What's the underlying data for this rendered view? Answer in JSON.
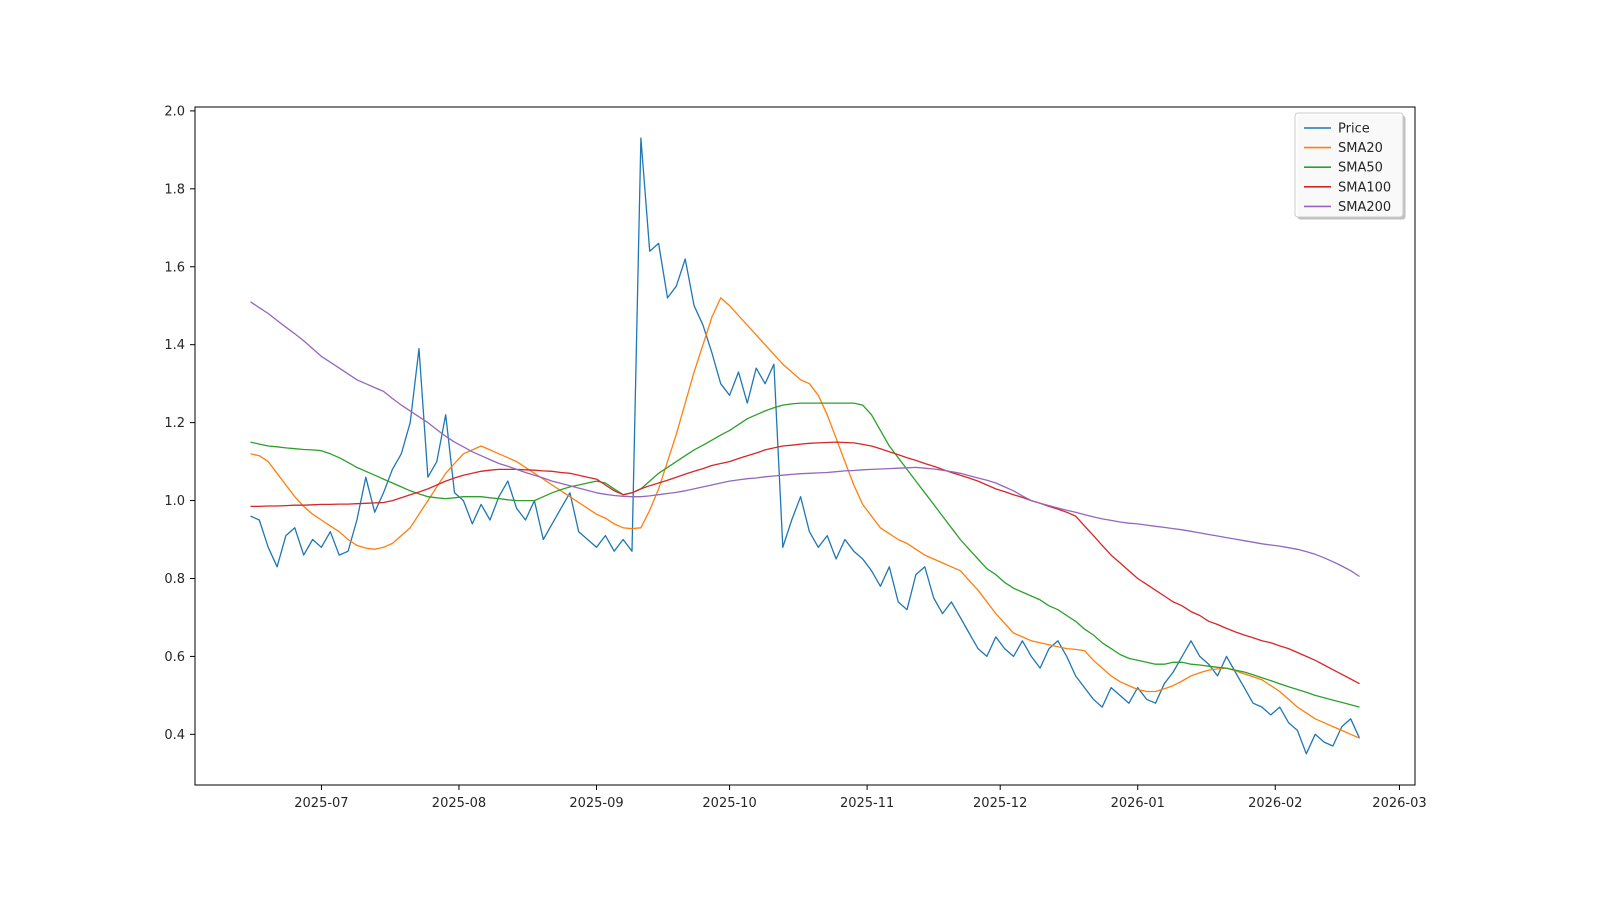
{
  "figure": {
    "background": "#ffffff",
    "axes_edge_color": "#000000",
    "tick_color": "#262626"
  },
  "chart_data": {
    "type": "line",
    "title": "",
    "xlabel": "",
    "ylabel": "",
    "grid": false,
    "legend_position": "upper right",
    "x_start_date": "2025-06-15",
    "x_step_days": 2,
    "xlim_days": [
      -12.5,
      262.5
    ],
    "ylim": [
      0.27,
      2.01
    ],
    "yticks": [
      0.4,
      0.6,
      0.8,
      1.0,
      1.2,
      1.4,
      1.6,
      1.8,
      2.0
    ],
    "xticks": [
      {
        "label": "2025-07",
        "day": 16
      },
      {
        "label": "2025-08",
        "day": 47
      },
      {
        "label": "2025-09",
        "day": 78
      },
      {
        "label": "2025-10",
        "day": 108
      },
      {
        "label": "2025-11",
        "day": 139
      },
      {
        "label": "2025-12",
        "day": 169
      },
      {
        "label": "2026-01",
        "day": 200
      },
      {
        "label": "2026-02",
        "day": 231
      },
      {
        "label": "2026-03",
        "day": 259
      }
    ],
    "series": [
      {
        "name": "Price",
        "color": "#1f77b4",
        "values": [
          0.96,
          0.95,
          0.88,
          0.83,
          0.91,
          0.93,
          0.86,
          0.9,
          0.88,
          0.92,
          0.86,
          0.87,
          0.95,
          1.06,
          0.97,
          1.02,
          1.08,
          1.12,
          1.2,
          1.39,
          1.06,
          1.1,
          1.22,
          1.02,
          1.0,
          0.94,
          0.99,
          0.95,
          1.01,
          1.05,
          0.98,
          0.95,
          1.0,
          0.9,
          0.94,
          0.98,
          1.02,
          0.92,
          0.9,
          0.88,
          0.91,
          0.87,
          0.9,
          0.87,
          1.93,
          1.64,
          1.66,
          1.52,
          1.55,
          1.62,
          1.5,
          1.45,
          1.38,
          1.3,
          1.27,
          1.33,
          1.25,
          1.34,
          1.3,
          1.35,
          0.88,
          0.95,
          1.01,
          0.92,
          0.88,
          0.91,
          0.85,
          0.9,
          0.87,
          0.85,
          0.82,
          0.78,
          0.83,
          0.74,
          0.72,
          0.81,
          0.83,
          0.75,
          0.71,
          0.74,
          0.7,
          0.66,
          0.62,
          0.6,
          0.65,
          0.62,
          0.6,
          0.64,
          0.6,
          0.57,
          0.62,
          0.64,
          0.6,
          0.55,
          0.52,
          0.49,
          0.47,
          0.52,
          0.5,
          0.48,
          0.52,
          0.49,
          0.48,
          0.53,
          0.56,
          0.6,
          0.64,
          0.6,
          0.58,
          0.55,
          0.6,
          0.56,
          0.52,
          0.48,
          0.47,
          0.45,
          0.47,
          0.43,
          0.41,
          0.35,
          0.4,
          0.38,
          0.37,
          0.42,
          0.44,
          0.39
        ]
      },
      {
        "name": "SMA20",
        "color": "#ff7f0e",
        "values": [
          1.12,
          1.115,
          1.1,
          1.07,
          1.04,
          1.01,
          0.985,
          0.965,
          0.95,
          0.935,
          0.92,
          0.9,
          0.885,
          0.878,
          0.875,
          0.88,
          0.89,
          0.91,
          0.93,
          0.965,
          1.0,
          1.035,
          1.07,
          1.095,
          1.12,
          1.13,
          1.14,
          1.13,
          1.12,
          1.11,
          1.1,
          1.085,
          1.07,
          1.055,
          1.04,
          1.025,
          1.01,
          0.995,
          0.98,
          0.965,
          0.955,
          0.94,
          0.93,
          0.928,
          0.93,
          0.975,
          1.03,
          1.1,
          1.17,
          1.25,
          1.33,
          1.4,
          1.47,
          1.52,
          1.5,
          1.475,
          1.45,
          1.425,
          1.4,
          1.375,
          1.35,
          1.33,
          1.31,
          1.3,
          1.27,
          1.22,
          1.16,
          1.1,
          1.04,
          0.99,
          0.96,
          0.93,
          0.915,
          0.9,
          0.89,
          0.875,
          0.86,
          0.85,
          0.84,
          0.83,
          0.82,
          0.795,
          0.77,
          0.74,
          0.71,
          0.685,
          0.66,
          0.65,
          0.64,
          0.635,
          0.63,
          0.625,
          0.62,
          0.618,
          0.615,
          0.59,
          0.57,
          0.55,
          0.535,
          0.525,
          0.515,
          0.51,
          0.51,
          0.517,
          0.525,
          0.537,
          0.55,
          0.558,
          0.565,
          0.568,
          0.57,
          0.563,
          0.555,
          0.548,
          0.54,
          0.525,
          0.51,
          0.49,
          0.47,
          0.455,
          0.44,
          0.43,
          0.42,
          0.41,
          0.4,
          0.39
        ]
      },
      {
        "name": "SMA50",
        "color": "#2ca02c",
        "values": [
          1.15,
          1.145,
          1.14,
          1.138,
          1.135,
          1.133,
          1.131,
          1.13,
          1.128,
          1.12,
          1.11,
          1.098,
          1.085,
          1.075,
          1.065,
          1.055,
          1.045,
          1.035,
          1.025,
          1.017,
          1.01,
          1.007,
          1.005,
          1.007,
          1.01,
          1.01,
          1.01,
          1.007,
          1.005,
          1.002,
          1.0,
          1.0,
          1.0,
          1.01,
          1.02,
          1.028,
          1.035,
          1.04,
          1.045,
          1.05,
          1.045,
          1.03,
          1.015,
          1.02,
          1.03,
          1.05,
          1.07,
          1.085,
          1.1,
          1.115,
          1.13,
          1.142,
          1.155,
          1.168,
          1.18,
          1.195,
          1.21,
          1.22,
          1.23,
          1.238,
          1.245,
          1.248,
          1.25,
          1.25,
          1.25,
          1.25,
          1.25,
          1.25,
          1.25,
          1.245,
          1.22,
          1.18,
          1.14,
          1.11,
          1.08,
          1.05,
          1.02,
          0.99,
          0.96,
          0.93,
          0.9,
          0.875,
          0.85,
          0.825,
          0.81,
          0.79,
          0.775,
          0.765,
          0.755,
          0.745,
          0.73,
          0.72,
          0.705,
          0.69,
          0.67,
          0.655,
          0.635,
          0.62,
          0.605,
          0.595,
          0.59,
          0.585,
          0.58,
          0.58,
          0.585,
          0.585,
          0.58,
          0.578,
          0.575,
          0.572,
          0.57,
          0.565,
          0.56,
          0.553,
          0.545,
          0.538,
          0.53,
          0.522,
          0.515,
          0.508,
          0.5,
          0.494,
          0.488,
          0.482,
          0.476,
          0.47
        ]
      },
      {
        "name": "SMA100",
        "color": "#d62728",
        "values": [
          0.985,
          0.985,
          0.986,
          0.986,
          0.987,
          0.988,
          0.988,
          0.989,
          0.99,
          0.99,
          0.991,
          0.991,
          0.992,
          0.993,
          0.994,
          0.995,
          1.0,
          1.007,
          1.015,
          1.022,
          1.03,
          1.04,
          1.05,
          1.058,
          1.065,
          1.07,
          1.075,
          1.078,
          1.08,
          1.08,
          1.08,
          1.079,
          1.078,
          1.076,
          1.075,
          1.072,
          1.07,
          1.065,
          1.06,
          1.055,
          1.04,
          1.025,
          1.015,
          1.02,
          1.03,
          1.038,
          1.045,
          1.052,
          1.06,
          1.068,
          1.075,
          1.082,
          1.09,
          1.095,
          1.1,
          1.108,
          1.115,
          1.122,
          1.13,
          1.135,
          1.14,
          1.142,
          1.145,
          1.147,
          1.148,
          1.149,
          1.15,
          1.149,
          1.148,
          1.144,
          1.14,
          1.133,
          1.125,
          1.118,
          1.11,
          1.103,
          1.095,
          1.088,
          1.08,
          1.072,
          1.065,
          1.058,
          1.05,
          1.04,
          1.03,
          1.023,
          1.015,
          1.008,
          1.0,
          0.993,
          0.985,
          0.978,
          0.97,
          0.96,
          0.935,
          0.91,
          0.885,
          0.86,
          0.84,
          0.82,
          0.8,
          0.785,
          0.77,
          0.755,
          0.74,
          0.73,
          0.715,
          0.705,
          0.69,
          0.682,
          0.672,
          0.663,
          0.655,
          0.648,
          0.64,
          0.635,
          0.627,
          0.62,
          0.61,
          0.6,
          0.59,
          0.578,
          0.566,
          0.554,
          0.542,
          0.53
        ]
      },
      {
        "name": "SMA200",
        "color": "#9467bd",
        "values": [
          1.51,
          1.495,
          1.48,
          1.462,
          1.445,
          1.428,
          1.41,
          1.39,
          1.37,
          1.355,
          1.34,
          1.325,
          1.31,
          1.3,
          1.29,
          1.28,
          1.262,
          1.245,
          1.23,
          1.215,
          1.2,
          1.182,
          1.165,
          1.15,
          1.138,
          1.125,
          1.115,
          1.105,
          1.095,
          1.088,
          1.08,
          1.072,
          1.065,
          1.058,
          1.05,
          1.044,
          1.038,
          1.032,
          1.026,
          1.02,
          1.016,
          1.013,
          1.011,
          1.01,
          1.01,
          1.012,
          1.015,
          1.018,
          1.021,
          1.025,
          1.03,
          1.035,
          1.04,
          1.045,
          1.05,
          1.053,
          1.056,
          1.058,
          1.061,
          1.063,
          1.065,
          1.067,
          1.069,
          1.07,
          1.071,
          1.072,
          1.074,
          1.076,
          1.077,
          1.079,
          1.08,
          1.081,
          1.082,
          1.083,
          1.084,
          1.085,
          1.083,
          1.081,
          1.078,
          1.074,
          1.07,
          1.064,
          1.058,
          1.052,
          1.045,
          1.035,
          1.025,
          1.012,
          1.0,
          0.993,
          0.987,
          0.981,
          0.975,
          0.97,
          0.964,
          0.958,
          0.953,
          0.949,
          0.945,
          0.942,
          0.94,
          0.937,
          0.934,
          0.931,
          0.928,
          0.925,
          0.921,
          0.917,
          0.913,
          0.909,
          0.905,
          0.901,
          0.897,
          0.893,
          0.889,
          0.886,
          0.883,
          0.879,
          0.875,
          0.869,
          0.862,
          0.853,
          0.843,
          0.832,
          0.82,
          0.805
        ]
      }
    ],
    "legend": {
      "entries": [
        "Price",
        "SMA20",
        "SMA50",
        "SMA100",
        "SMA200"
      ],
      "frame_color": "#cccccc",
      "background": "#ffffff",
      "shadow_color": "#c0c0c0"
    }
  }
}
